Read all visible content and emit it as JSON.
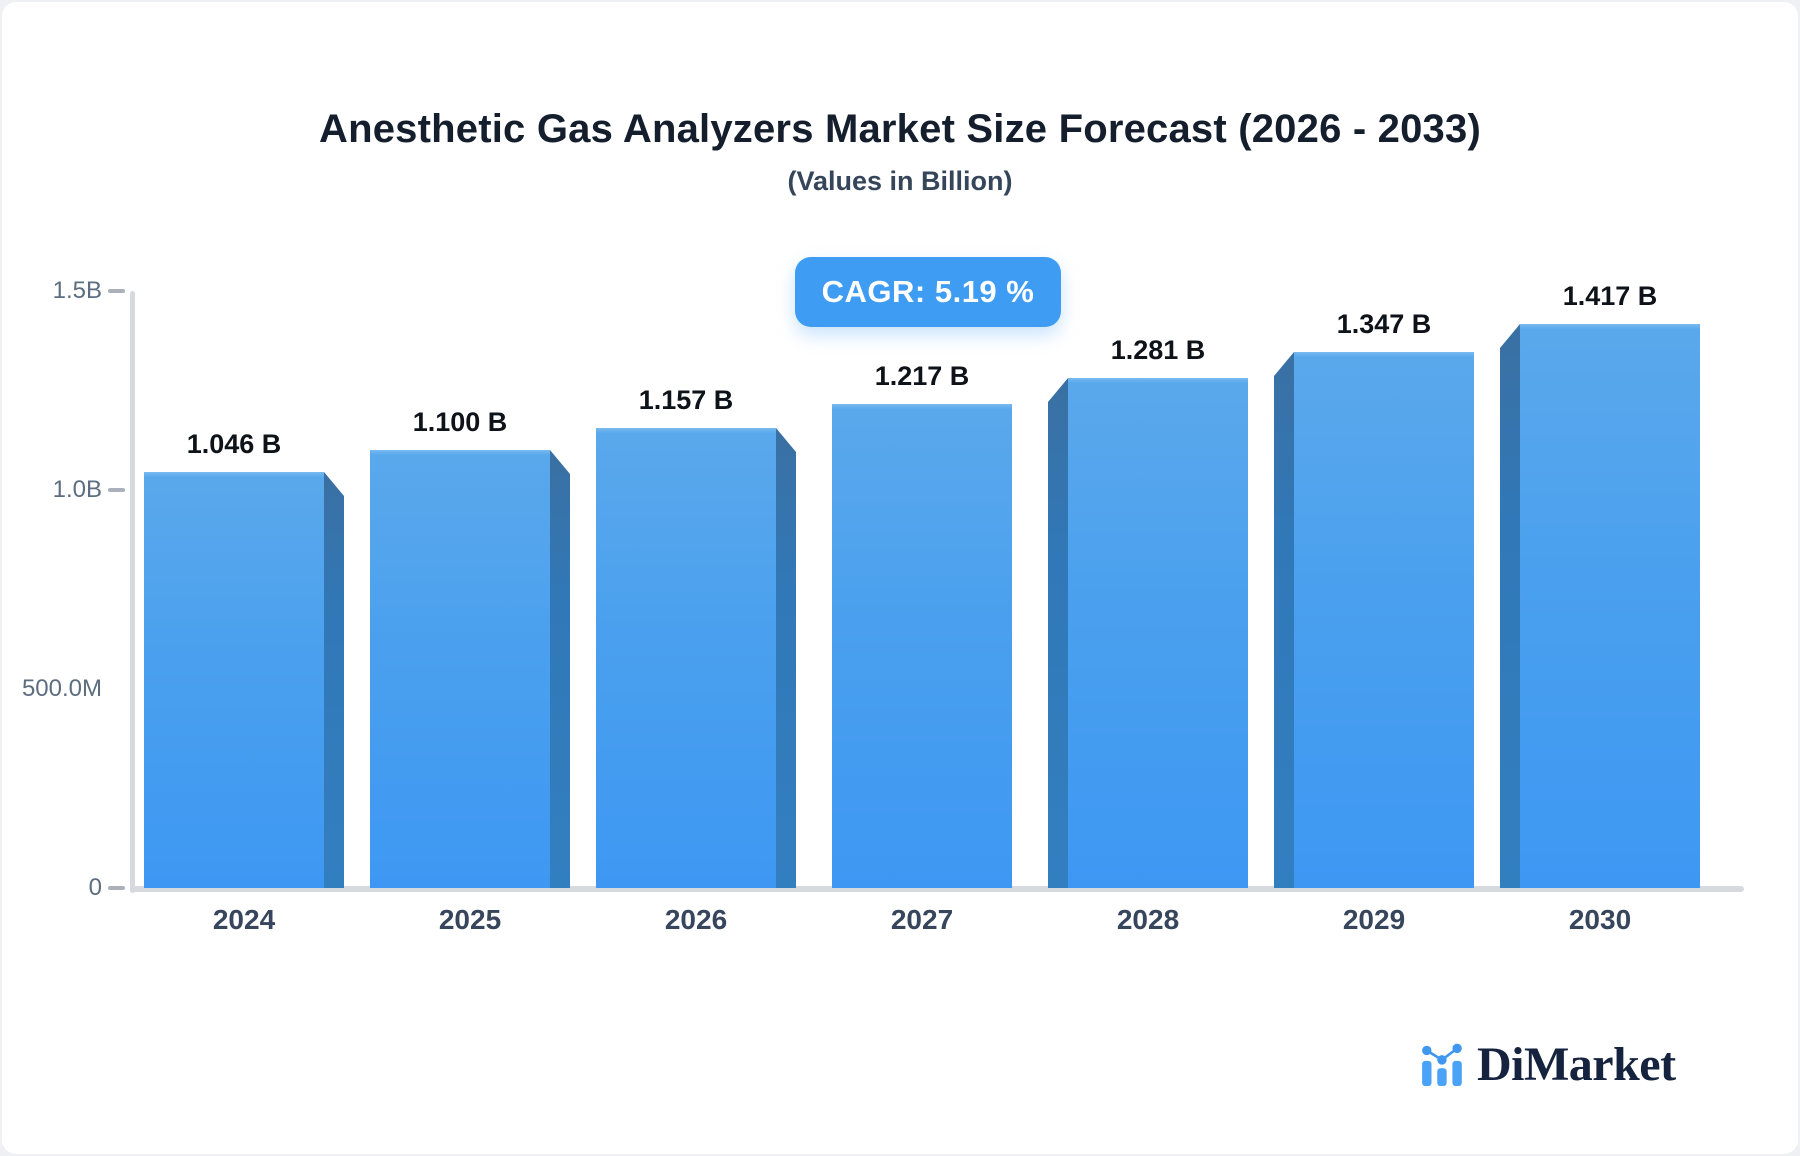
{
  "header": {
    "title": "Anesthetic Gas Analyzers Market Size Forecast (2026 - 2033)",
    "subtitle": "(Values in Billion)",
    "cagr_label": "CAGR: 5.19 %"
  },
  "brand": {
    "name": "DiMarket",
    "icon": "bar-line-chart-icon"
  },
  "colors": {
    "badge_bg": "#3e9cf3",
    "bar_face_top": "#5aa8ec",
    "bar_face_bottom": "#3e98f3",
    "bar_side": "#3178b8",
    "axis_line": "#d6d9de",
    "tick_label": "#5d6d80",
    "year_label": "#37465c",
    "value_label": "#0e1319",
    "title_color": "#141e2c",
    "logo_blue": "#4aa3f7",
    "logo_accent": "#3f97f0",
    "logo_text": "#15233e"
  },
  "chart_data": {
    "type": "bar",
    "title": "Anesthetic Gas Analyzers Market Size Forecast (2026 - 2033)",
    "subtitle": "(Values in Billion)",
    "categories": [
      "2024",
      "2025",
      "2026",
      "2027",
      "2028",
      "2029",
      "2030"
    ],
    "values": [
      1.046,
      1.1,
      1.157,
      1.217,
      1.281,
      1.347,
      1.417
    ],
    "value_labels": [
      "1.046 B",
      "1.100 B",
      "1.157 B",
      "1.217 B",
      "1.281 B",
      "1.347 B",
      "1.417 B"
    ],
    "cagr_percent": 5.19,
    "ylim": [
      0,
      1.5
    ],
    "y_ticks": [
      {
        "label": "1.5B",
        "value": 1.5,
        "dash": true
      },
      {
        "label": "1.0B",
        "value": 1.0,
        "dash": true
      },
      {
        "label": "500.0M",
        "value": 0.5,
        "dash": false
      },
      {
        "label": "0",
        "value": 0,
        "dash": true
      }
    ],
    "grid": false,
    "legend": false,
    "bar_style": "3d-beveled-blue"
  }
}
